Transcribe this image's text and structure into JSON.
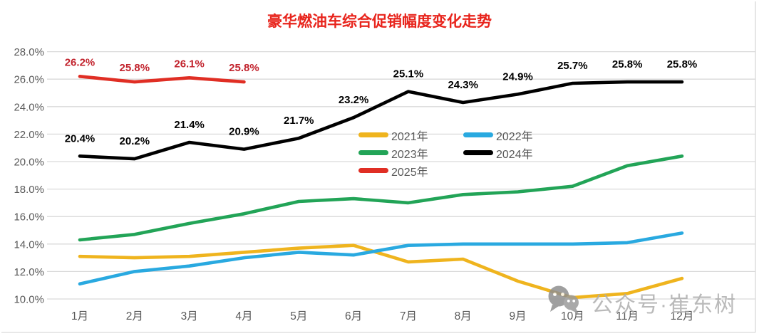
{
  "chart_data": {
    "type": "line",
    "title": "豪华燃油车综合促销幅度变化走势",
    "categories": [
      "1月",
      "2月",
      "3月",
      "4月",
      "5月",
      "6月",
      "7月",
      "8月",
      "9月",
      "10月",
      "11月",
      "12月"
    ],
    "ylim": [
      10,
      28
    ],
    "y_ticks": [
      {
        "value": 28,
        "label": "28.0%"
      },
      {
        "value": 26,
        "label": "26.0%"
      },
      {
        "value": 24,
        "label": "24.0%"
      },
      {
        "value": 22,
        "label": "22.0%"
      },
      {
        "value": 20,
        "label": "20.0%"
      },
      {
        "value": 18,
        "label": "18.0%"
      },
      {
        "value": 16,
        "label": "16.0%"
      },
      {
        "value": 14,
        "label": "14.0%"
      },
      {
        "value": 12,
        "label": "12.0%"
      },
      {
        "value": 10,
        "label": "10.0%"
      }
    ],
    "grid": true,
    "legend_position": "inside-center",
    "series": [
      {
        "name": "2021年",
        "color": "#efb41e",
        "values": [
          13.1,
          13.0,
          13.1,
          13.4,
          13.7,
          13.9,
          12.7,
          12.9,
          11.3,
          10.1,
          10.4,
          11.5
        ],
        "labeled": false
      },
      {
        "name": "2022年",
        "color": "#29a9e0",
        "values": [
          11.1,
          12.0,
          12.4,
          13.0,
          13.4,
          13.2,
          13.9,
          14.0,
          14.0,
          14.0,
          14.1,
          14.8
        ],
        "labeled": false
      },
      {
        "name": "2023年",
        "color": "#22a457",
        "values": [
          14.3,
          14.7,
          15.5,
          16.2,
          17.1,
          17.3,
          17.0,
          17.6,
          17.8,
          18.2,
          19.7,
          20.4
        ],
        "labeled": false
      },
      {
        "name": "2024年",
        "color": "#000000",
        "values": [
          20.4,
          20.2,
          21.4,
          20.9,
          21.7,
          23.2,
          25.1,
          24.3,
          24.9,
          25.7,
          25.8,
          25.8
        ],
        "labeled": true,
        "labels": [
          "20.4%",
          "20.2%",
          "21.4%",
          "20.9%",
          "21.7%",
          "23.2%",
          "25.1%",
          "24.3%",
          "24.9%",
          "25.7%",
          "25.8%",
          "25.8%"
        ],
        "label_color": "#000000"
      },
      {
        "name": "2025年",
        "color": "#e02e24",
        "values": [
          26.2,
          25.8,
          26.1,
          25.8
        ],
        "labeled": true,
        "labels": [
          "26.2%",
          "25.8%",
          "26.1%",
          "25.8%"
        ],
        "label_color": "#c2232d"
      }
    ]
  },
  "styles": {
    "title_color": "#e8241c",
    "axis_text_color": "#595959",
    "gridline_color": "#d9d9d9",
    "legend_text_color": "#595959"
  },
  "watermark": {
    "icon": "wechat-icon",
    "text": "公众号·崔东树"
  }
}
